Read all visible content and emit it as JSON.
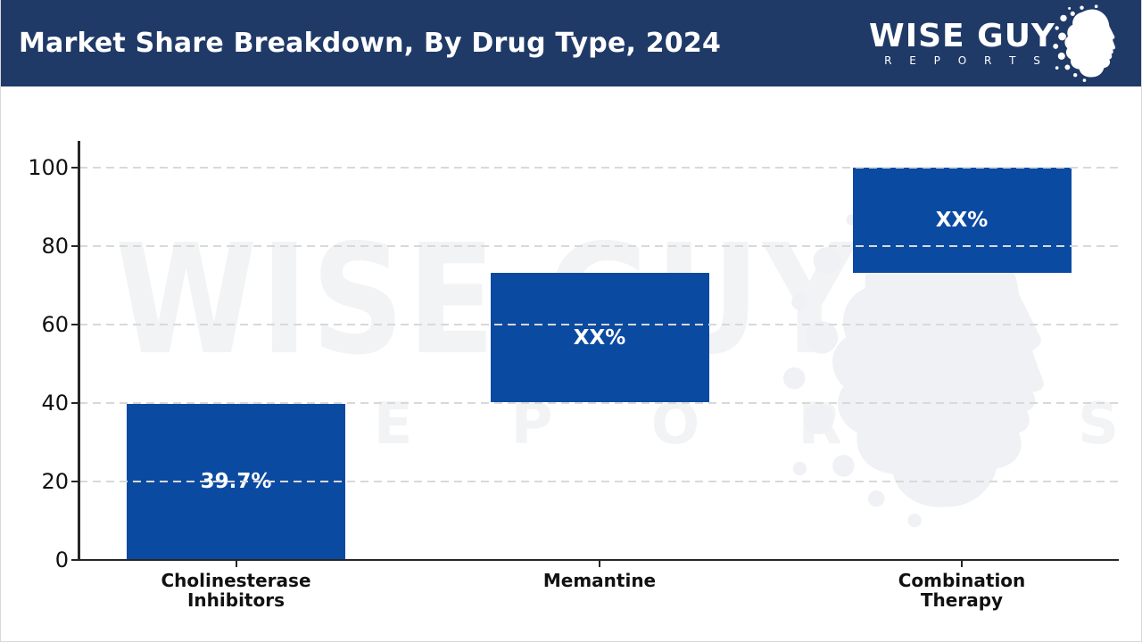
{
  "page": {
    "background": "#ffffff",
    "edge_line_color": "#d9d9d9"
  },
  "header": {
    "background": "#203a68",
    "title": "Market Share Breakdown, By Drug Type, 2024",
    "logo": {
      "name": "WISE GUY",
      "sub": "R E P O R T S"
    }
  },
  "watermark": {
    "name": "WISE GUY",
    "sub": "R E P O R T S"
  },
  "chart_data": {
    "type": "bar",
    "subtype": "waterfall",
    "title": "Market Share Breakdown, By Drug Type, 2024",
    "categories": [
      "Cholinesterase\nInhibitors",
      "Memantine",
      "Combination\nTherapy"
    ],
    "series": [
      {
        "name": "Market share (%)",
        "segments": [
          {
            "category": "Cholinesterase Inhibitors",
            "start": 0,
            "end": 39.7,
            "label": "39.7%"
          },
          {
            "category": "Memantine",
            "start": 40,
            "end": 73,
            "label": "XX%"
          },
          {
            "category": "Combination Therapy",
            "start": 73,
            "end": 100,
            "label": "XX%"
          }
        ]
      }
    ],
    "ylim": [
      0,
      100
    ],
    "yticks": [
      0,
      20,
      40,
      60,
      80,
      100
    ],
    "xlabel": "",
    "ylabel": "",
    "grid": "horizontal-dashed",
    "legend": "none",
    "bar_color": "#0b4aa1",
    "bar_label_color": "#ffffff",
    "axis_color": "#262626",
    "gridline_color": "#d9d9d9"
  }
}
